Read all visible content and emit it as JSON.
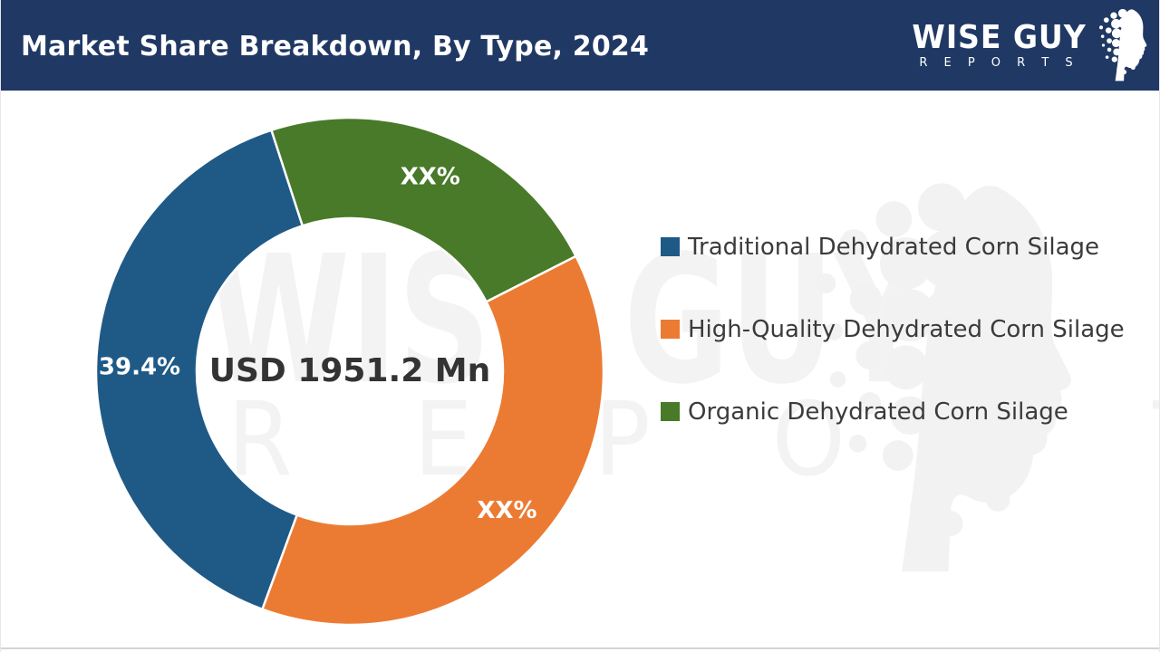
{
  "header": {
    "title": "Market Share Breakdown, By Type, 2024",
    "bg_color": "#203864",
    "logo": {
      "line1": "WISE GUY",
      "line2": "R E P O R T S"
    }
  },
  "watermark": {
    "line1": "WISE GUY",
    "line2": "R E P O R T S"
  },
  "chart_data": {
    "type": "donut",
    "title": "Market Share Breakdown, By Type, 2024",
    "center_label": "USD 1951.2 Mn",
    "start_angle_deg": 108,
    "direction": "counterclockwise",
    "legend_position": "right",
    "segments": [
      {
        "name": "Traditional Dehydrated Corn Silage",
        "display_share": "39.4%",
        "value_pct": 39.4,
        "color": "#1F5A87"
      },
      {
        "name": "High-Quality Dehydrated Corn Silage",
        "display_share": "XX%",
        "value_pct": 38.1,
        "color": "#EB7B33"
      },
      {
        "name": "Organic Dehydrated Corn Silage",
        "display_share": "XX%",
        "value_pct": 22.5,
        "color": "#487A29"
      }
    ]
  }
}
